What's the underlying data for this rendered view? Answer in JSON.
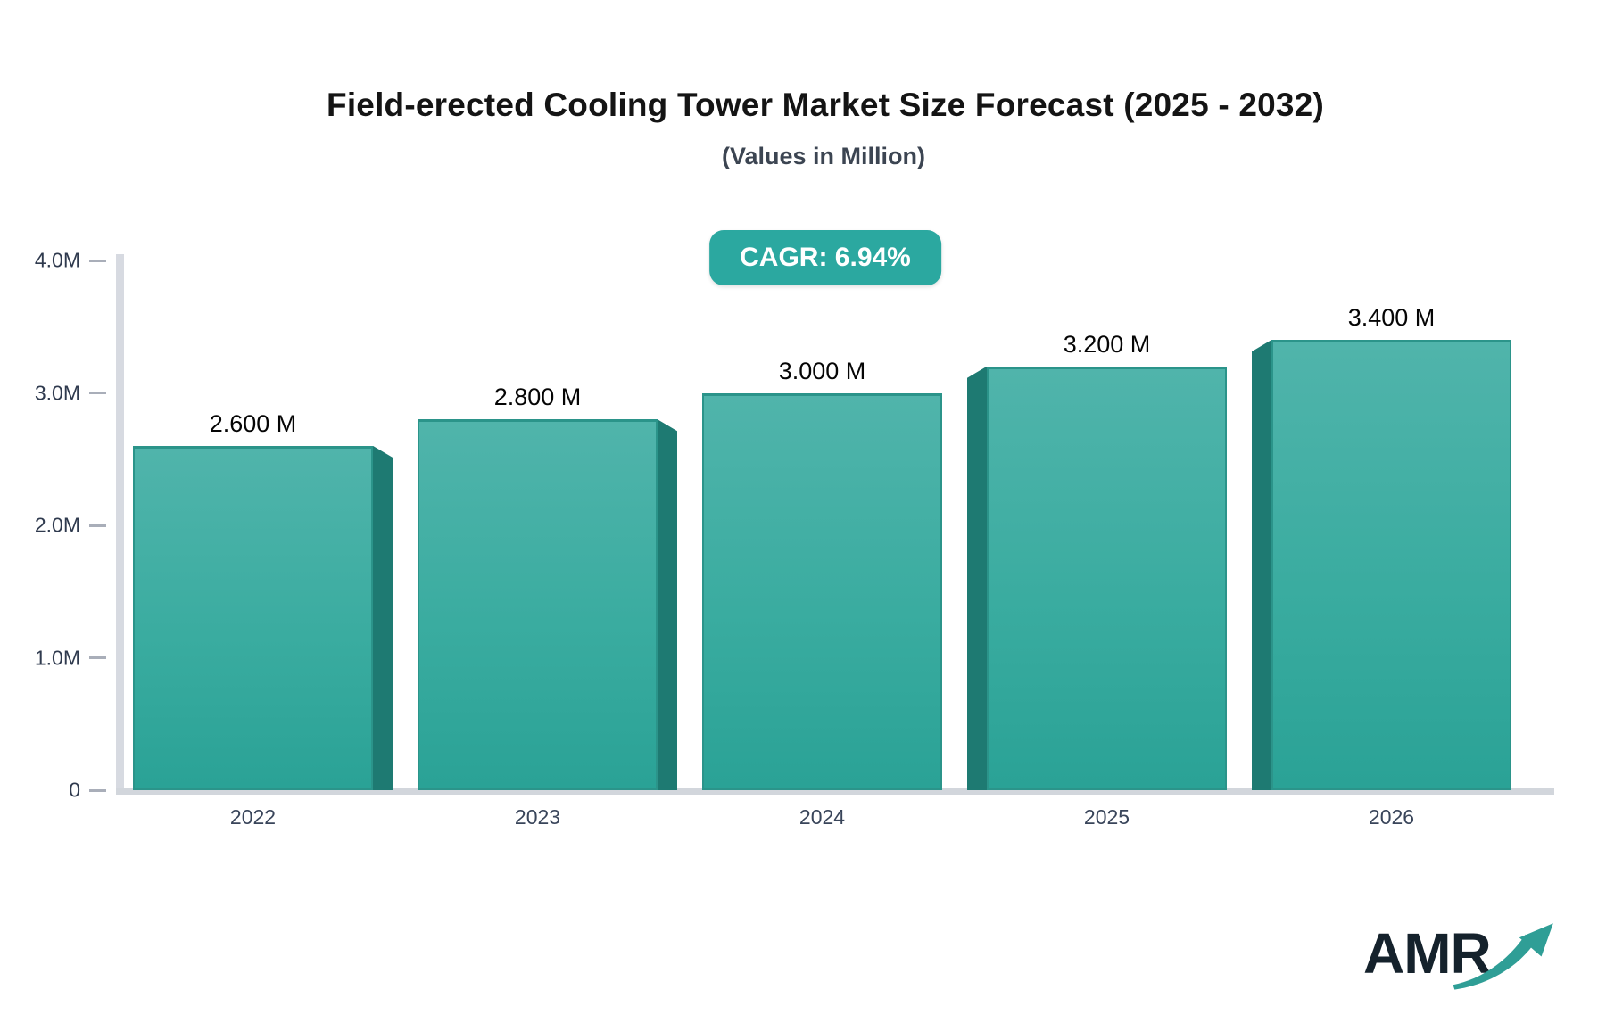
{
  "header": {
    "title": "Field-erected Cooling Tower Market Size Forecast (2025 - 2032)",
    "subtitle": "(Values in Million)"
  },
  "badge": {
    "label": "CAGR: 6.94%",
    "background": "#2BA8A0",
    "text_color": "#FFFFFF"
  },
  "chart_data": {
    "type": "bar",
    "title": "Field-erected Cooling Tower Market Size Forecast (2025 - 2032)",
    "subtitle": "(Values in Million)",
    "unit": "Million",
    "categories": [
      "2022",
      "2023",
      "2024",
      "2025",
      "2026"
    ],
    "values": [
      2.6,
      2.8,
      3.0,
      3.2,
      3.4
    ],
    "value_labels": [
      "2.600 M",
      "2.800 M",
      "3.000 M",
      "3.200 M",
      "3.400 M"
    ],
    "ylim": [
      0,
      4.0
    ],
    "yticks": [
      {
        "value": 0,
        "label": "0"
      },
      {
        "value": 1.0,
        "label": "1.0M"
      },
      {
        "value": 2.0,
        "label": "2.0M"
      },
      {
        "value": 3.0,
        "label": "3.0M"
      },
      {
        "value": 4.0,
        "label": "4.0M"
      }
    ],
    "grid": false,
    "legend": "none",
    "effect": "3d-perspective",
    "colors": {
      "bar_face_top": "#50B4AB",
      "bar_face_bottom": "#2AA296",
      "bar_side": "#1E7A72",
      "bar_border": "#2B948A",
      "axis": "#D7DAE1",
      "tick_text": "#2F3A4E",
      "value_text": "#050505"
    }
  },
  "logo": {
    "text": "AMR",
    "text_color": "#15222C",
    "arrow_color": "#2F9E96",
    "arrow_icon": "growth-arrow"
  }
}
